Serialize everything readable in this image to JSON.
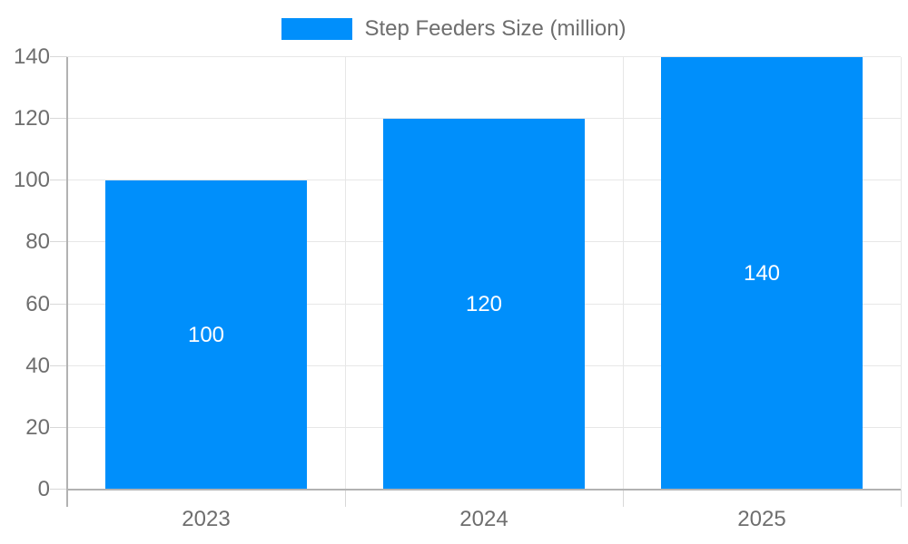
{
  "chart_data": {
    "type": "bar",
    "title": "Step Feeders Size (million)",
    "legend": [
      "Step Feeders Size (million)"
    ],
    "legend_position": "top",
    "categories": [
      "2023",
      "2024",
      "2025"
    ],
    "values": [
      100,
      120,
      140
    ],
    "bar_labels": [
      "100",
      "120",
      "140"
    ],
    "ylim": [
      0,
      140
    ],
    "yticks": [
      0,
      20,
      40,
      60,
      80,
      100,
      120,
      140
    ],
    "xlabel": "",
    "ylabel": "",
    "grid": true,
    "colors": {
      "bar": "#008FFB",
      "grid_line": "#e7e7e7",
      "tick_line": "#d8d8d8",
      "axis_line": "#b2b2b2",
      "label_text": "#6e6e6e",
      "bar_label_text": "#ffffff",
      "background": "#ffffff"
    }
  }
}
